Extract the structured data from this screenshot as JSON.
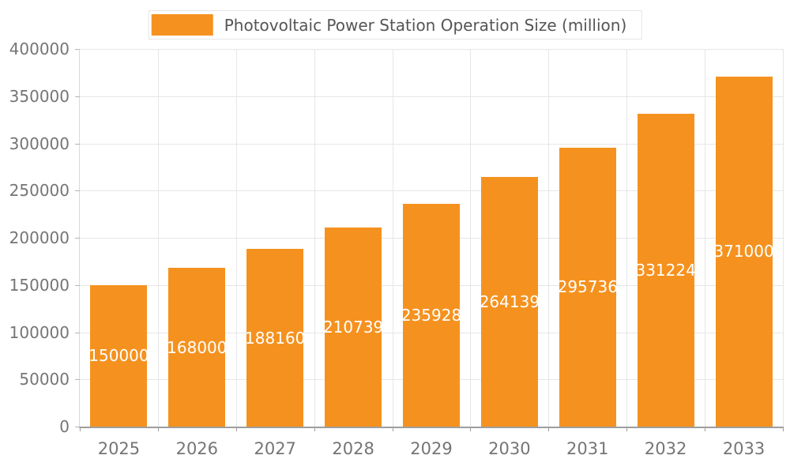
{
  "legend": {
    "label": "Photovoltaic Power Station Operation Size (million)",
    "swatch_color": "#F5921F"
  },
  "chart_data": {
    "type": "bar",
    "title": "Photovoltaic Power Station Operation Size (million)",
    "categories": [
      "2025",
      "2026",
      "2027",
      "2028",
      "2029",
      "2030",
      "2031",
      "2032",
      "2033"
    ],
    "values": [
      150000,
      168000,
      188160,
      210739,
      235928,
      264139,
      295736,
      331224,
      371000
    ],
    "xlabel": "",
    "ylabel": "",
    "ylim": [
      0,
      400000
    ],
    "yticks": [
      0,
      50000,
      100000,
      150000,
      200000,
      250000,
      300000,
      350000,
      400000
    ],
    "bar_color": "#F5921F",
    "value_label_color": "#ffffff",
    "grid": true,
    "legend_position": "top"
  }
}
